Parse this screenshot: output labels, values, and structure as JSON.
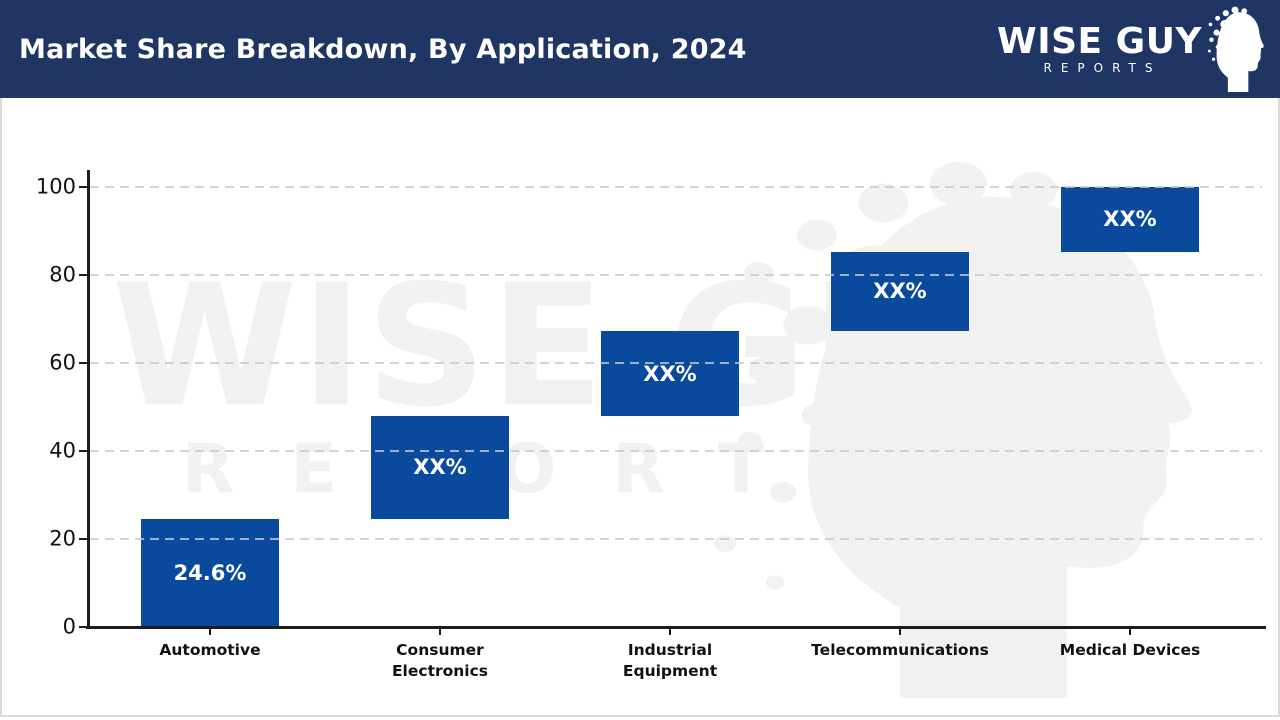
{
  "header": {
    "title": "Market Share Breakdown, By Application, 2024",
    "logo": {
      "line1": "WISE GUY",
      "line2": "REPORTS"
    }
  },
  "watermark": {
    "line1": "WISE GUY",
    "line2": "REPORTS"
  },
  "colors": {
    "header_bg": "#1f3563",
    "bar": "#0a4a9d",
    "grid": "#c8c8c8",
    "axis": "#1c1c1c",
    "watermark": "#f1f1f1",
    "bar_label_text": "#ffffff"
  },
  "chart_data": {
    "type": "bar",
    "subtype": "waterfall",
    "title": "Market Share Breakdown, By Application, 2024",
    "categories": [
      "Automotive",
      "Consumer Electronics",
      "Industrial Equipment",
      "Telecommunications",
      "Medical Devices"
    ],
    "segments": [
      {
        "category": "Automotive",
        "category_display": "Automotive",
        "start": 0,
        "end": 24.6,
        "label": "24.6%"
      },
      {
        "category": "Consumer Electronics",
        "category_display": "Consumer\nElectronics",
        "start": 24.6,
        "end": 48.0,
        "label": "XX%"
      },
      {
        "category": "Industrial Equipment",
        "category_display": "Industrial\nEquipment",
        "start": 48.0,
        "end": 67.2,
        "label": "XX%"
      },
      {
        "category": "Telecommunications",
        "category_display": "Telecommunications",
        "start": 67.2,
        "end": 85.3,
        "label": "XX%"
      },
      {
        "category": "Medical Devices",
        "category_display": "Medical Devices",
        "start": 85.3,
        "end": 100.0,
        "label": "XX%"
      }
    ],
    "xlabel": "",
    "ylabel": "",
    "yticks": [
      0,
      20,
      40,
      60,
      80,
      100
    ],
    "ylim": [
      0,
      104
    ],
    "grid": "horizontal-dashed",
    "legend": "none"
  }
}
